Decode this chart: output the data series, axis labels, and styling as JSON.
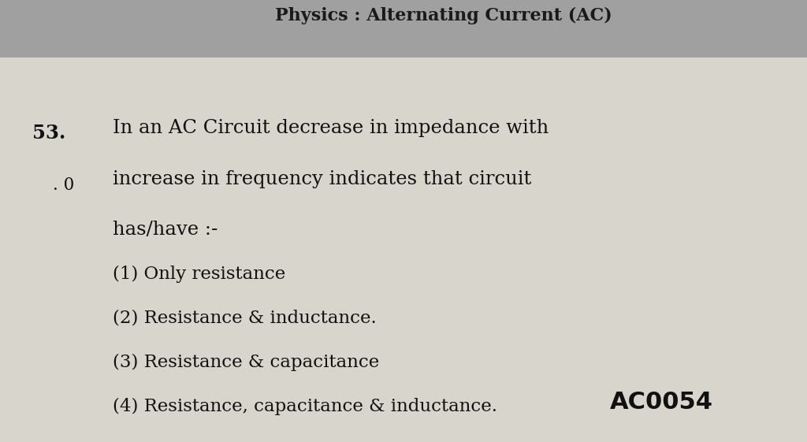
{
  "header_text": "Physics : Alternating Current (AC)",
  "header_bg_color": "#a0a0a0",
  "header_text_color": "#1a1a1a",
  "bg_color": "#d8d5cc",
  "question_number": "53.",
  "question_text_line1": "In an AC Circuit decrease in impedance with",
  "question_text_line2": "increase in frequency indicates that circuit",
  "question_text_line3": "has/have :-",
  "options": [
    "(1) Only resistance",
    "(2) Resistance & inductance.",
    "(3) Resistance & capacitance",
    "(4) Resistance, capacitance & inductance."
  ],
  "code": "AC0054",
  "main_font_size": 17.5,
  "header_font_size": 16,
  "option_font_size": 16.5,
  "code_font_size": 22,
  "text_color": "#111111",
  "code_color": "#111111"
}
